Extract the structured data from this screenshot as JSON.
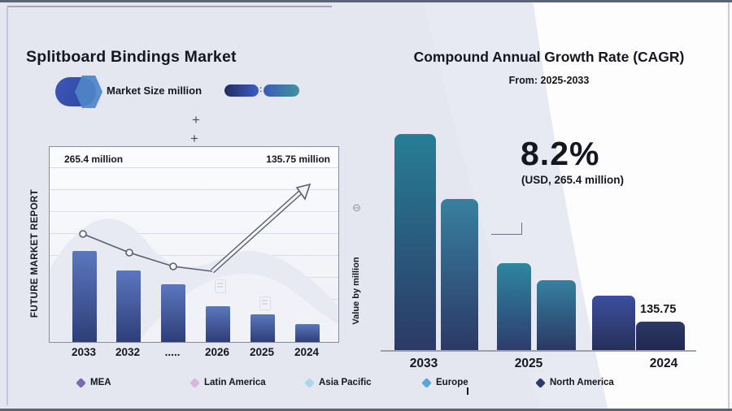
{
  "header": {
    "title": "Splitboard Bindings Market",
    "market_size_label": "Market Size million",
    "ratio_separator": ":"
  },
  "decorations": {
    "plus_top": "+",
    "plus_bottom": "+",
    "minus_icon": "⊖"
  },
  "left_chart": {
    "watermark": "FUTURE MARKET REPORT",
    "ylabel": "Value by million",
    "label_start": "265.4 million",
    "label_end": "135.75 million",
    "categories": [
      "2033",
      "2032",
      ".....",
      "2026",
      "2025",
      "2024"
    ]
  },
  "right_chart": {
    "title": "Compound Annual Growth Rate (CAGR)",
    "subtitle": "From: 2025-2033",
    "cagr": "8.2%",
    "cagr_note": "(USD, 265.4 million)",
    "value_label": "135.75",
    "categories": [
      "2033",
      "2025",
      "2024"
    ]
  },
  "legend": {
    "items": [
      {
        "label": "MEA",
        "color": "#7a68b4"
      },
      {
        "label": "Latin America",
        "color": "#d9b7dd"
      },
      {
        "label": "Asia Pacific",
        "color": "#abd7eb"
      },
      {
        "label": "Europe",
        "color": "#58a6dc"
      },
      {
        "label": "North America",
        "color": "#2d3a6b"
      }
    ]
  },
  "chart_data": [
    {
      "type": "bar",
      "title": "Splitboard Bindings Market - Market Size million",
      "ylabel": "Value by million",
      "categories": [
        "2033",
        "2032",
        ".....",
        "2026",
        "2025",
        "2024"
      ],
      "relative_heights": [
        1.0,
        0.79,
        0.63,
        0.39,
        0.3,
        0.2
      ],
      "labeled_values": {
        "2033": 265.4,
        "2024": 135.75
      },
      "annotations": [
        "265.4 million",
        "135.75 million"
      ],
      "extras": "descending trend line with circular markers, then outlined arrow rising to upper right",
      "grid": true,
      "bar_color_top": "#5b77bf",
      "bar_color_bottom": "#2e3e78"
    },
    {
      "type": "bar",
      "title": "Compound Annual Growth Rate (CAGR)",
      "subtitle": "From: 2025-2033",
      "categories": [
        "2033",
        "2025",
        "2024"
      ],
      "series": [
        {
          "name": "series-a",
          "relative_heights": [
            1.0,
            0.402,
            0.252
          ]
        },
        {
          "name": "series-b",
          "relative_heights": [
            0.699,
            0.323,
            0.132
          ]
        }
      ],
      "cagr": "8.2%",
      "cagr_note": "(USD, 265.4 million)",
      "data_label": {
        "category": "2024",
        "value": 135.75
      },
      "grid": false,
      "bar_color_top": "#277e96",
      "bar_color_bottom": "#232d59"
    }
  ]
}
